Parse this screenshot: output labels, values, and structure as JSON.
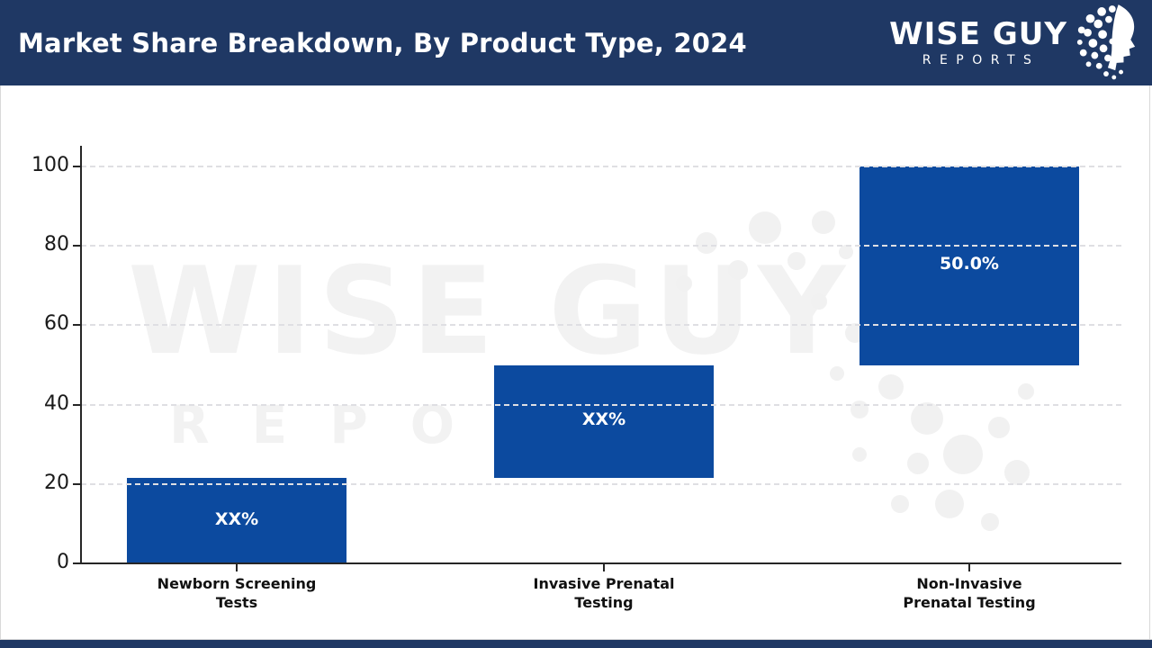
{
  "header": {
    "title": "Market Share Breakdown, By Product Type, 2024",
    "brand": {
      "name": "WISE GUY",
      "subname": "REPORTS"
    }
  },
  "watermark": {
    "line1": "WISE GUY",
    "line2": "REPORTS"
  },
  "colors": {
    "header_bg": "#1f3864",
    "footer_bg": "#1f3864",
    "bar": "#0c4a9f",
    "bar_label": "#ffffff",
    "grid": "#dfdfe3",
    "axis": "#262626",
    "watermark": "#f2f2f2"
  },
  "chart_data": {
    "type": "bar",
    "subtype": "floating-waterfall",
    "title": "Market Share Breakdown, By Product Type, 2024",
    "categories": [
      "Newborn Screening Tests",
      "Invasive Prenatal Testing",
      "Non-Invasive Prenatal Testing"
    ],
    "bars": [
      {
        "category_lines": [
          "Newborn Screening",
          "Tests"
        ],
        "start": 0,
        "end": 21.5,
        "label": "XX%"
      },
      {
        "category_lines": [
          "Invasive Prenatal",
          "Testing"
        ],
        "start": 21.5,
        "end": 50,
        "label": "XX%"
      },
      {
        "category_lines": [
          "Non-Invasive",
          "Prenatal Testing"
        ],
        "start": 50,
        "end": 100,
        "label": "50.0%"
      }
    ],
    "y_ticks": [
      0,
      20,
      40,
      60,
      80,
      100
    ],
    "ylim": [
      0,
      100
    ],
    "xlabel": "",
    "ylabel": "",
    "grid": "horizontal-dashed",
    "legend": "none"
  }
}
